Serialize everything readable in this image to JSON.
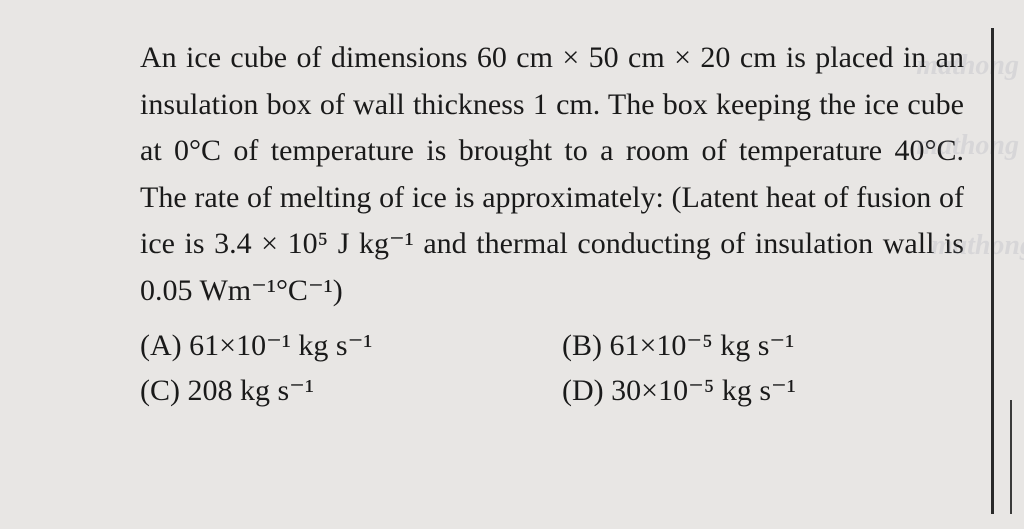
{
  "problem": {
    "text": "An ice cube of dimensions 60 cm × 50 cm × 20 cm is placed in an insulation box of wall thickness 1 cm. The box keeping the ice cube at 0°C of temperature is brought to a room of temperature 40°C. The rate of melting of ice is approximately: (Latent heat of fusion of ice is 3.4 × 10⁵ J kg⁻¹ and thermal conducting of insulation wall is 0.05 Wm⁻¹°C⁻¹)",
    "options": {
      "a": "(A) 61×10⁻¹ kg s⁻¹",
      "b": "(B) 61×10⁻⁵ kg s⁻¹",
      "c": "(C) 208 kg s⁻¹",
      "d": "(D) 30×10⁻⁵ kg s⁻¹"
    }
  },
  "watermark": {
    "text": "mathong"
  },
  "styling": {
    "background_color": "#e8e6e4",
    "text_color": "#1a1a1a",
    "watermark_color": "rgba(120, 130, 145, 0.15)",
    "font_family": "Georgia, Times New Roman, serif",
    "body_fontsize": 30,
    "line_height": 1.55
  }
}
